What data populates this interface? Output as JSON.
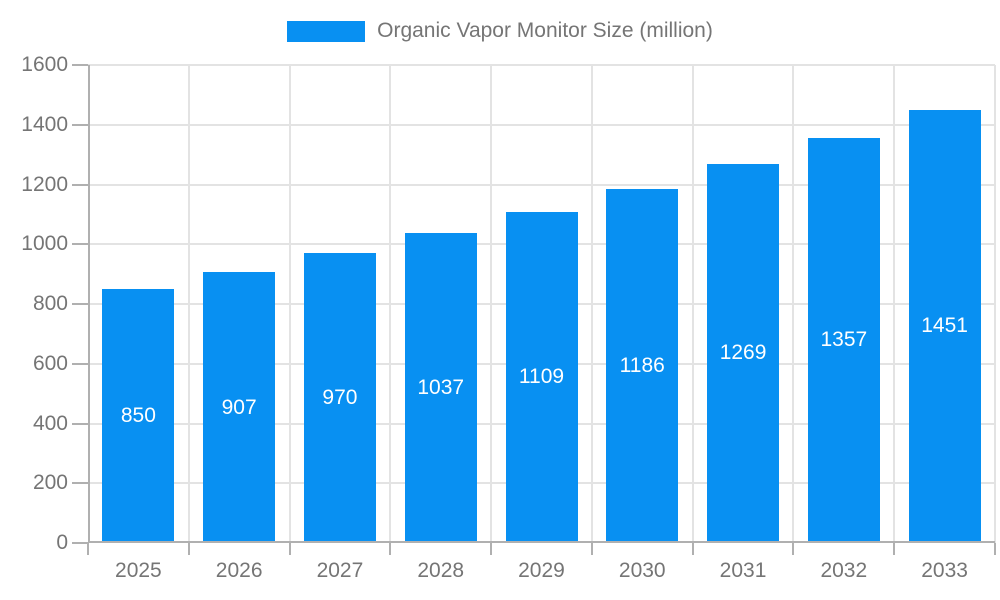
{
  "legend": {
    "label": "Organic Vapor Monitor Size (million)"
  },
  "chart_data": {
    "type": "bar",
    "title": "Organic Vapor Monitor Size (million)",
    "series_name": "Organic Vapor Monitor Size (million)",
    "categories": [
      "2025",
      "2026",
      "2027",
      "2028",
      "2029",
      "2030",
      "2031",
      "2032",
      "2033"
    ],
    "values": [
      850,
      907,
      970,
      1037,
      1109,
      1186,
      1269,
      1357,
      1451
    ],
    "xlabel": "",
    "ylabel": "",
    "ylim": [
      0,
      1600
    ],
    "y_ticks": [
      0,
      200,
      400,
      600,
      800,
      1000,
      1200,
      1400,
      1600
    ],
    "grid": true,
    "legend_position": "top",
    "value_labels": "inside-center",
    "colors": {
      "bar": "#0890F2",
      "value_label": "#ffffff",
      "axis": "#b0b0b0",
      "grid": "#e3e3e3",
      "text": "#757575"
    }
  }
}
